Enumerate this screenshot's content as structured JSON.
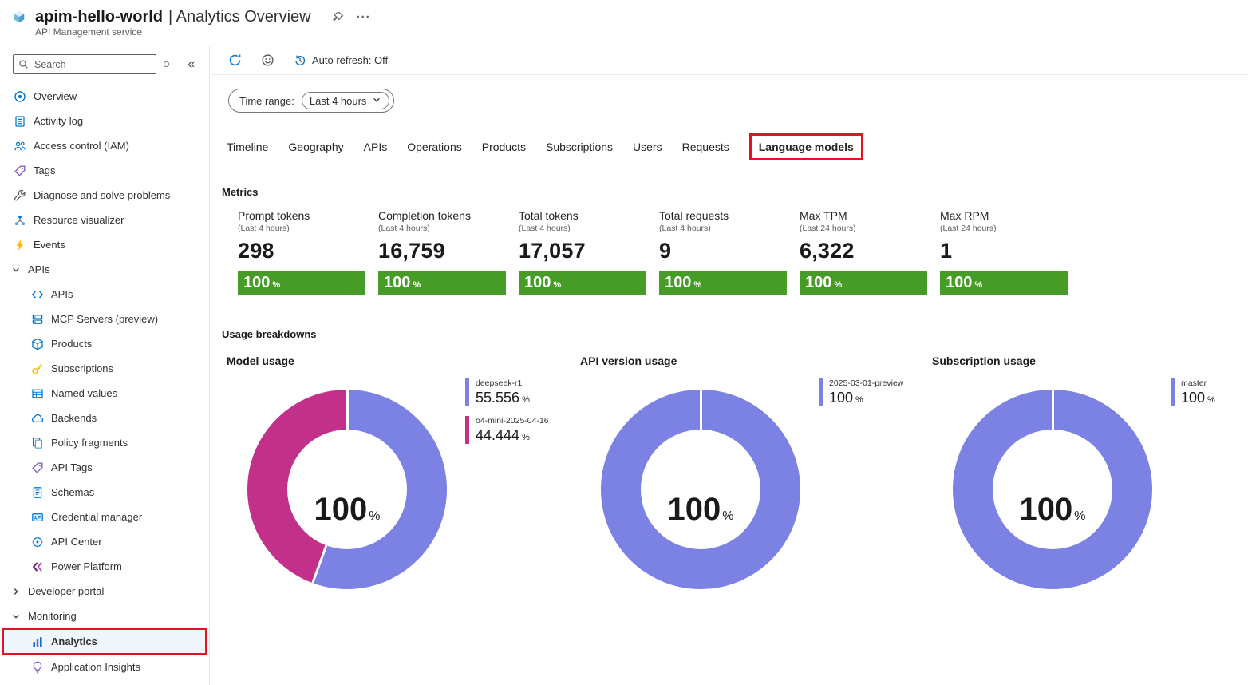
{
  "header": {
    "resource_name": "apim-hello-world",
    "page_title": "| Analytics Overview",
    "service_type": "API Management service"
  },
  "commandbar": {
    "auto_refresh": "Auto refresh: Off"
  },
  "filters": {
    "time_range_label": "Time range:",
    "time_range_value": "Last 4 hours"
  },
  "sidebar": {
    "search_placeholder": "Search",
    "items": [
      {
        "label": "Overview",
        "icon": "overview-icon",
        "type": "item"
      },
      {
        "label": "Activity log",
        "icon": "activity-log-icon",
        "type": "item"
      },
      {
        "label": "Access control (IAM)",
        "icon": "access-control-icon",
        "type": "item"
      },
      {
        "label": "Tags",
        "icon": "tags-icon",
        "type": "item"
      },
      {
        "label": "Diagnose and solve problems",
        "icon": "diagnose-icon",
        "type": "item"
      },
      {
        "label": "Resource visualizer",
        "icon": "resource-visualizer-icon",
        "type": "item"
      },
      {
        "label": "Events",
        "icon": "events-icon",
        "type": "item"
      },
      {
        "label": "APIs",
        "icon": "chevron-down-icon",
        "type": "group",
        "expanded": true
      },
      {
        "label": "APIs",
        "icon": "apis-icon",
        "type": "child"
      },
      {
        "label": "MCP Servers (preview)",
        "icon": "mcp-servers-icon",
        "type": "child"
      },
      {
        "label": "Products",
        "icon": "products-icon",
        "type": "child"
      },
      {
        "label": "Subscriptions",
        "icon": "subscriptions-icon",
        "type": "child"
      },
      {
        "label": "Named values",
        "icon": "named-values-icon",
        "type": "child"
      },
      {
        "label": "Backends",
        "icon": "backends-icon",
        "type": "child"
      },
      {
        "label": "Policy fragments",
        "icon": "policy-fragments-icon",
        "type": "child"
      },
      {
        "label": "API Tags",
        "icon": "api-tags-icon",
        "type": "child"
      },
      {
        "label": "Schemas",
        "icon": "schemas-icon",
        "type": "child"
      },
      {
        "label": "Credential manager",
        "icon": "credential-manager-icon",
        "type": "child"
      },
      {
        "label": "API Center",
        "icon": "api-center-icon",
        "type": "child"
      },
      {
        "label": "Power Platform",
        "icon": "power-platform-icon",
        "type": "child"
      },
      {
        "label": "Developer portal",
        "icon": "chevron-right-icon",
        "type": "group",
        "expanded": false
      },
      {
        "label": "Monitoring",
        "icon": "chevron-down-icon",
        "type": "group",
        "expanded": true
      },
      {
        "label": "Analytics",
        "icon": "analytics-icon",
        "type": "child",
        "selected": true,
        "annotated": true
      },
      {
        "label": "Application Insights",
        "icon": "application-insights-icon",
        "type": "child"
      }
    ]
  },
  "tabs": [
    {
      "label": "Timeline"
    },
    {
      "label": "Geography"
    },
    {
      "label": "APIs"
    },
    {
      "label": "Operations"
    },
    {
      "label": "Products"
    },
    {
      "label": "Subscriptions"
    },
    {
      "label": "Users"
    },
    {
      "label": "Requests"
    },
    {
      "label": "Language models",
      "active": true,
      "annotated": true
    }
  ],
  "metrics": {
    "section_title": "Metrics",
    "cards": [
      {
        "label": "Prompt tokens",
        "period": "(Last 4 hours)",
        "value": "298",
        "bar_value": "100",
        "bar_unit": "%"
      },
      {
        "label": "Completion tokens",
        "period": "(Last 4 hours)",
        "value": "16,759",
        "bar_value": "100",
        "bar_unit": "%"
      },
      {
        "label": "Total tokens",
        "period": "(Last 4 hours)",
        "value": "17,057",
        "bar_value": "100",
        "bar_unit": "%"
      },
      {
        "label": "Total requests",
        "period": "(Last 4 hours)",
        "value": "9",
        "bar_value": "100",
        "bar_unit": "%"
      },
      {
        "label": "Max TPM",
        "period": "(Last 24 hours)",
        "value": "6,322",
        "bar_value": "100",
        "bar_unit": "%"
      },
      {
        "label": "Max RPM",
        "period": "(Last 24 hours)",
        "value": "1",
        "bar_value": "100",
        "bar_unit": "%"
      }
    ]
  },
  "usage": {
    "section_title": "Usage breakdowns",
    "charts": [
      {
        "title": "Model usage",
        "center_value": "100",
        "center_unit": "%",
        "segments": [
          {
            "name": "deepseek-r1",
            "value": "55.556",
            "unit": "%",
            "pct": 55.556,
            "color": "#7b82e3"
          },
          {
            "name": "o4-mini-2025-04-16",
            "value": "44.444",
            "unit": "%",
            "pct": 44.444,
            "color": "#c2308a"
          }
        ]
      },
      {
        "title": "API version usage",
        "center_value": "100",
        "center_unit": "%",
        "segments": [
          {
            "name": "2025-03-01-preview",
            "value": "100",
            "unit": "%",
            "pct": 100,
            "color": "#7b82e3"
          }
        ]
      },
      {
        "title": "Subscription usage",
        "center_value": "100",
        "center_unit": "%",
        "segments": [
          {
            "name": "master",
            "value": "100",
            "unit": "%",
            "pct": 100,
            "color": "#7b82e3"
          }
        ]
      }
    ]
  },
  "colors": {
    "accent": "#0078d4",
    "bar_green": "#479b27",
    "chart_purple": "#7b82e3",
    "chart_magenta": "#c2308a",
    "annotation_red": "#e81123",
    "selected_bg": "#eff6fc"
  },
  "chart_data": [
    {
      "type": "pie",
      "title": "Model usage",
      "labels": [
        "deepseek-r1",
        "o4-mini-2025-04-16"
      ],
      "values": [
        55.556,
        44.444
      ],
      "unit": "%",
      "center_label": "100%",
      "colors": [
        "#7b82e3",
        "#c2308a"
      ],
      "legend_position": "right"
    },
    {
      "type": "pie",
      "title": "API version usage",
      "labels": [
        "2025-03-01-preview"
      ],
      "values": [
        100
      ],
      "unit": "%",
      "center_label": "100%",
      "colors": [
        "#7b82e3"
      ],
      "legend_position": "right"
    },
    {
      "type": "pie",
      "title": "Subscription usage",
      "labels": [
        "master"
      ],
      "values": [
        100
      ],
      "unit": "%",
      "center_label": "100%",
      "colors": [
        "#7b82e3"
      ],
      "legend_position": "right"
    }
  ]
}
